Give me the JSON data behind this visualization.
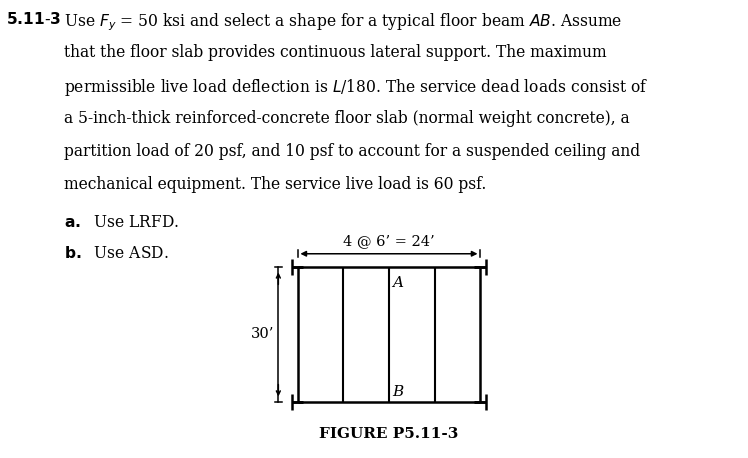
{
  "title_number": "5.11-3",
  "paragraph_lines": [
    "Use $F_y$ = 50 ksi and select a shape for a typical floor beam $AB$. Assume",
    "that the floor slab provides continuous lateral support. The maximum",
    "permissible live load deflection is $L$/180. The service dead loads consist of",
    "a 5-inch-thick reinforced-concrete floor slab (normal weight concrete), a",
    "partition load of 20 psf, and 10 psf to account for a suspended ceiling and",
    "mechanical equipment. The service live load is 60 psf."
  ],
  "item_a_text": "Use LRFD.",
  "item_b_text": "Use ASD.",
  "dim_label": "4 @ 6’ = 24’",
  "span_label": "30’",
  "point_a": "A",
  "point_b": "B",
  "figure_label": "FIGURE P5.11-3",
  "nx": 4,
  "background_color": "#ffffff",
  "line_color": "#000000",
  "fontsize_body": 11.2,
  "fontsize_diagram": 10.5,
  "fontsize_figure": 11.0
}
